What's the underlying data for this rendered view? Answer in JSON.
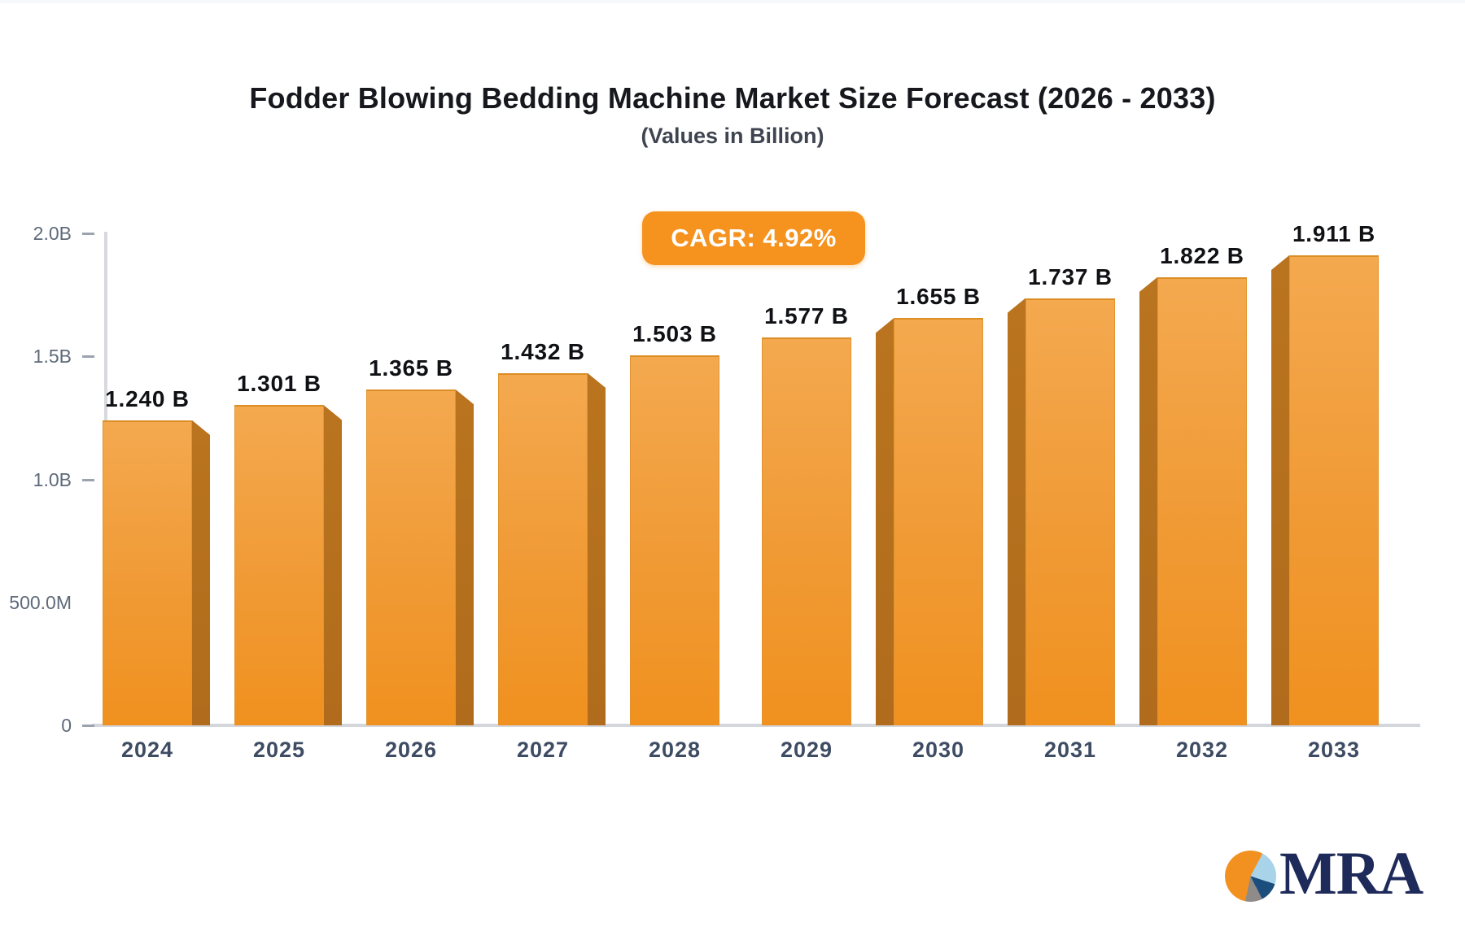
{
  "header": {
    "title": "Fodder Blowing Bedding Machine Market Size Forecast (2026 - 2033)",
    "subtitle": "(Values in Billion)"
  },
  "badge": {
    "label": "CAGR: 4.92%",
    "bg_color": "#F6921E",
    "text_color": "#FFFFFF"
  },
  "chart_data": {
    "type": "bar",
    "title": "Fodder Blowing Bedding Machine Market Size Forecast (2026 - 2033)",
    "subtitle": "(Values in Billion)",
    "categories": [
      "2024",
      "2025",
      "2026",
      "2027",
      "2028",
      "2029",
      "2030",
      "2031",
      "2032",
      "2033"
    ],
    "values": [
      1.24,
      1.301,
      1.365,
      1.432,
      1.503,
      1.577,
      1.655,
      1.737,
      1.822,
      1.911
    ],
    "value_labels": [
      "1.240 B",
      "1.301 B",
      "1.365 B",
      "1.432 B",
      "1.503 B",
      "1.577 B",
      "1.655 B",
      "1.737 B",
      "1.822 B",
      "1.911 B"
    ],
    "unit": "Billion USD",
    "xlabel": "",
    "ylabel": "",
    "ylim": [
      0,
      2.0
    ],
    "y_ticks": [
      {
        "label": "2.0B",
        "value": 2.0,
        "dash": true
      },
      {
        "label": "1.5B",
        "value": 1.5,
        "dash": true
      },
      {
        "label": "1.0B",
        "value": 1.0,
        "dash": true
      },
      {
        "label": "500.0M",
        "value": 0.5,
        "dash": false
      },
      {
        "label": "0",
        "value": 0.0,
        "dash": true
      }
    ],
    "grid": false,
    "legend_position": "none",
    "bar_color_top": "#F4A94F",
    "bar_color_bottom": "#F0911F",
    "bar_side_color": "#B5701F",
    "axis_color": "#D6D8DD",
    "label_color": "#101114"
  },
  "logo": {
    "text": "MRA",
    "pie_colors": [
      "#F39120",
      "#A9D3E9",
      "#1B4D7D",
      "#8F8B89"
    ]
  }
}
